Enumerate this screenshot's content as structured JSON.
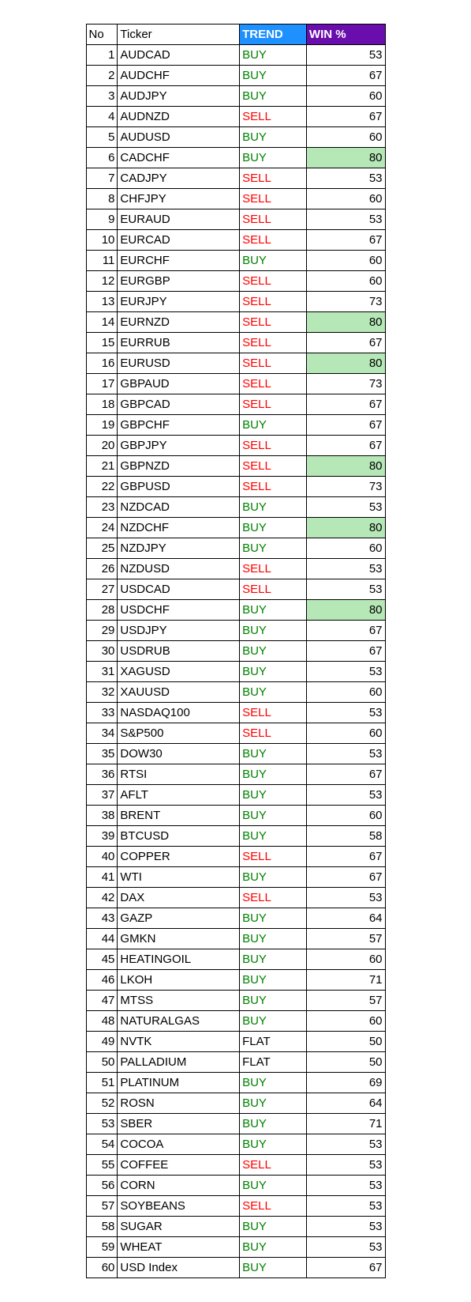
{
  "table": {
    "headers": {
      "no": "No",
      "ticker": "Ticker",
      "trend": "TREND",
      "win": "WIN %"
    },
    "header_colors": {
      "trend_bg": "#1e90ff",
      "win_bg": "#6a0dad",
      "header_text": "#ffffff"
    },
    "trend_colors": {
      "BUY": "#008000",
      "SELL": "#ff0000",
      "FLAT": "#000000"
    },
    "highlight_color": "#b6e7b6",
    "highlight_threshold": 80,
    "border_color": "#000000",
    "background_color": "#ffffff",
    "font_size": 15,
    "col_widths": {
      "no": 40,
      "ticker": 155,
      "trend": 85,
      "win": 100
    },
    "rows": [
      {
        "no": 1,
        "ticker": "AUDCAD",
        "trend": "BUY",
        "win": 53
      },
      {
        "no": 2,
        "ticker": "AUDCHF",
        "trend": "BUY",
        "win": 67
      },
      {
        "no": 3,
        "ticker": "AUDJPY",
        "trend": "BUY",
        "win": 60
      },
      {
        "no": 4,
        "ticker": "AUDNZD",
        "trend": "SELL",
        "win": 67
      },
      {
        "no": 5,
        "ticker": "AUDUSD",
        "trend": "BUY",
        "win": 60
      },
      {
        "no": 6,
        "ticker": "CADCHF",
        "trend": "BUY",
        "win": 80
      },
      {
        "no": 7,
        "ticker": "CADJPY",
        "trend": "SELL",
        "win": 53
      },
      {
        "no": 8,
        "ticker": "CHFJPY",
        "trend": "SELL",
        "win": 60
      },
      {
        "no": 9,
        "ticker": "EURAUD",
        "trend": "SELL",
        "win": 53
      },
      {
        "no": 10,
        "ticker": "EURCAD",
        "trend": "SELL",
        "win": 67
      },
      {
        "no": 11,
        "ticker": "EURCHF",
        "trend": "BUY",
        "win": 60
      },
      {
        "no": 12,
        "ticker": "EURGBP",
        "trend": "SELL",
        "win": 60
      },
      {
        "no": 13,
        "ticker": "EURJPY",
        "trend": "SELL",
        "win": 73
      },
      {
        "no": 14,
        "ticker": "EURNZD",
        "trend": "SELL",
        "win": 80
      },
      {
        "no": 15,
        "ticker": "EURRUB",
        "trend": "SELL",
        "win": 67
      },
      {
        "no": 16,
        "ticker": "EURUSD",
        "trend": "SELL",
        "win": 80
      },
      {
        "no": 17,
        "ticker": "GBPAUD",
        "trend": "SELL",
        "win": 73
      },
      {
        "no": 18,
        "ticker": "GBPCAD",
        "trend": "SELL",
        "win": 67
      },
      {
        "no": 19,
        "ticker": "GBPCHF",
        "trend": "BUY",
        "win": 67
      },
      {
        "no": 20,
        "ticker": "GBPJPY",
        "trend": "SELL",
        "win": 67
      },
      {
        "no": 21,
        "ticker": "GBPNZD",
        "trend": "SELL",
        "win": 80
      },
      {
        "no": 22,
        "ticker": "GBPUSD",
        "trend": "SELL",
        "win": 73
      },
      {
        "no": 23,
        "ticker": "NZDCAD",
        "trend": "BUY",
        "win": 53
      },
      {
        "no": 24,
        "ticker": "NZDCHF",
        "trend": "BUY",
        "win": 80
      },
      {
        "no": 25,
        "ticker": "NZDJPY",
        "trend": "BUY",
        "win": 60
      },
      {
        "no": 26,
        "ticker": "NZDUSD",
        "trend": "SELL",
        "win": 53
      },
      {
        "no": 27,
        "ticker": "USDCAD",
        "trend": "SELL",
        "win": 53
      },
      {
        "no": 28,
        "ticker": "USDCHF",
        "trend": "BUY",
        "win": 80
      },
      {
        "no": 29,
        "ticker": "USDJPY",
        "trend": "BUY",
        "win": 67
      },
      {
        "no": 30,
        "ticker": "USDRUB",
        "trend": "BUY",
        "win": 67
      },
      {
        "no": 31,
        "ticker": "XAGUSD",
        "trend": "BUY",
        "win": 53
      },
      {
        "no": 32,
        "ticker": "XAUUSD",
        "trend": "BUY",
        "win": 60
      },
      {
        "no": 33,
        "ticker": "NASDAQ100",
        "trend": "SELL",
        "win": 53
      },
      {
        "no": 34,
        "ticker": "S&P500",
        "trend": "SELL",
        "win": 60
      },
      {
        "no": 35,
        "ticker": "DOW30",
        "trend": "BUY",
        "win": 53
      },
      {
        "no": 36,
        "ticker": "RTSI",
        "trend": "BUY",
        "win": 67
      },
      {
        "no": 37,
        "ticker": "AFLT",
        "trend": "BUY",
        "win": 53
      },
      {
        "no": 38,
        "ticker": "BRENT",
        "trend": "BUY",
        "win": 60
      },
      {
        "no": 39,
        "ticker": "BTCUSD",
        "trend": "BUY",
        "win": 58
      },
      {
        "no": 40,
        "ticker": "COPPER",
        "trend": "SELL",
        "win": 67
      },
      {
        "no": 41,
        "ticker": "WTI",
        "trend": "BUY",
        "win": 67
      },
      {
        "no": 42,
        "ticker": "DAX",
        "trend": "SELL",
        "win": 53
      },
      {
        "no": 43,
        "ticker": "GAZP",
        "trend": "BUY",
        "win": 64
      },
      {
        "no": 44,
        "ticker": "GMKN",
        "trend": "BUY",
        "win": 57
      },
      {
        "no": 45,
        "ticker": "HEATINGOIL",
        "trend": "BUY",
        "win": 60
      },
      {
        "no": 46,
        "ticker": "LKOH",
        "trend": "BUY",
        "win": 71
      },
      {
        "no": 47,
        "ticker": "MTSS",
        "trend": "BUY",
        "win": 57
      },
      {
        "no": 48,
        "ticker": "NATURALGAS",
        "trend": "BUY",
        "win": 60
      },
      {
        "no": 49,
        "ticker": "NVTK",
        "trend": "FLAT",
        "win": 50
      },
      {
        "no": 50,
        "ticker": "PALLADIUM",
        "trend": "FLAT",
        "win": 50
      },
      {
        "no": 51,
        "ticker": "PLATINUM",
        "trend": "BUY",
        "win": 69
      },
      {
        "no": 52,
        "ticker": "ROSN",
        "trend": "BUY",
        "win": 64
      },
      {
        "no": 53,
        "ticker": "SBER",
        "trend": "BUY",
        "win": 71
      },
      {
        "no": 54,
        "ticker": "COCOA",
        "trend": "BUY",
        "win": 53
      },
      {
        "no": 55,
        "ticker": "COFFEE",
        "trend": "SELL",
        "win": 53
      },
      {
        "no": 56,
        "ticker": "CORN",
        "trend": "BUY",
        "win": 53
      },
      {
        "no": 57,
        "ticker": "SOYBEANS",
        "trend": "SELL",
        "win": 53
      },
      {
        "no": 58,
        "ticker": "SUGAR",
        "trend": "BUY",
        "win": 53
      },
      {
        "no": 59,
        "ticker": "WHEAT",
        "trend": "BUY",
        "win": 53
      },
      {
        "no": 60,
        "ticker": "USD Index",
        "trend": "BUY",
        "win": 67
      }
    ]
  }
}
